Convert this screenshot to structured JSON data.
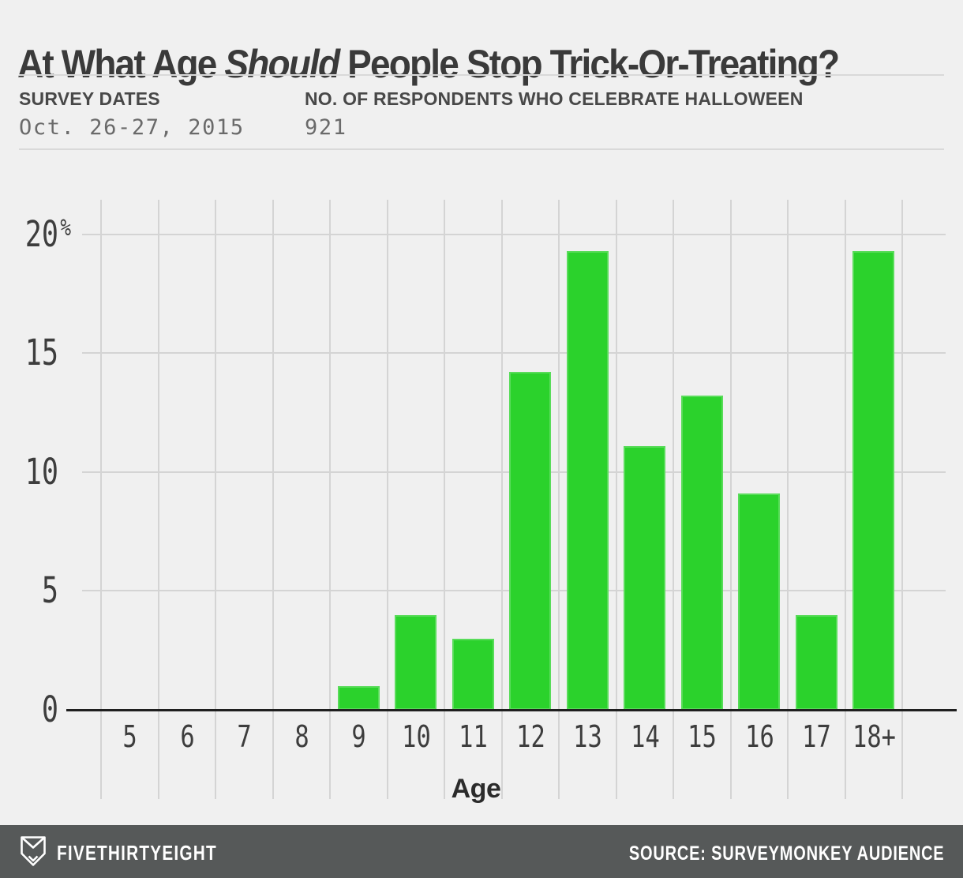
{
  "header": {
    "title": {
      "prefix": "At What Age ",
      "emphasis": "Should",
      "suffix": " People Stop Trick-Or-Treating?"
    },
    "meta": [
      {
        "label": "SURVEY DATES",
        "value": "Oct. 26-27, 2015"
      },
      {
        "label": "NO. OF RESPONDENTS WHO CELEBRATE HALLOWEEN",
        "value": "921"
      }
    ]
  },
  "chart_data": {
    "type": "bar",
    "categories": [
      "5",
      "6",
      "7",
      "8",
      "9",
      "10",
      "11",
      "12",
      "13",
      "14",
      "15",
      "16",
      "17",
      "18+"
    ],
    "values": [
      0,
      0,
      0,
      0,
      1.0,
      4.0,
      3.0,
      14.2,
      19.3,
      11.1,
      13.2,
      9.1,
      4.0,
      19.3
    ],
    "title": "At What Age Should People Stop Trick-Or-Treating?",
    "xlabel": "Age",
    "ylabel": "",
    "y_ticks": [
      {
        "value": 20,
        "label": "20",
        "suffix": "%"
      },
      {
        "value": 15,
        "label": "15",
        "suffix": ""
      },
      {
        "value": 10,
        "label": "10",
        "suffix": ""
      },
      {
        "value": 5,
        "label": "5",
        "suffix": ""
      },
      {
        "value": 0,
        "label": "0",
        "suffix": ""
      }
    ],
    "ylim": [
      0,
      21.5
    ],
    "grid": true,
    "legend_position": "none",
    "bar_color": "#2bd22c"
  },
  "footer": {
    "logo": "fivethirtyeight-fox-icon",
    "brand": "FIVETHIRTYEIGHT",
    "source": "SOURCE: SURVEYMONKEY AUDIENCE"
  },
  "colors": {
    "background": "#f0f0f0",
    "title": "#3a3a3a",
    "divider": "#d9d9d9",
    "meta_label": "#484848",
    "meta_value": "#6a6a6a",
    "grid": "#d4d4d4",
    "axis": "#1f1f1f",
    "tick": "#3d3d3d",
    "bar": "#2bd22c",
    "footer_bg": "#565959",
    "footer_text": "#ffffff"
  }
}
